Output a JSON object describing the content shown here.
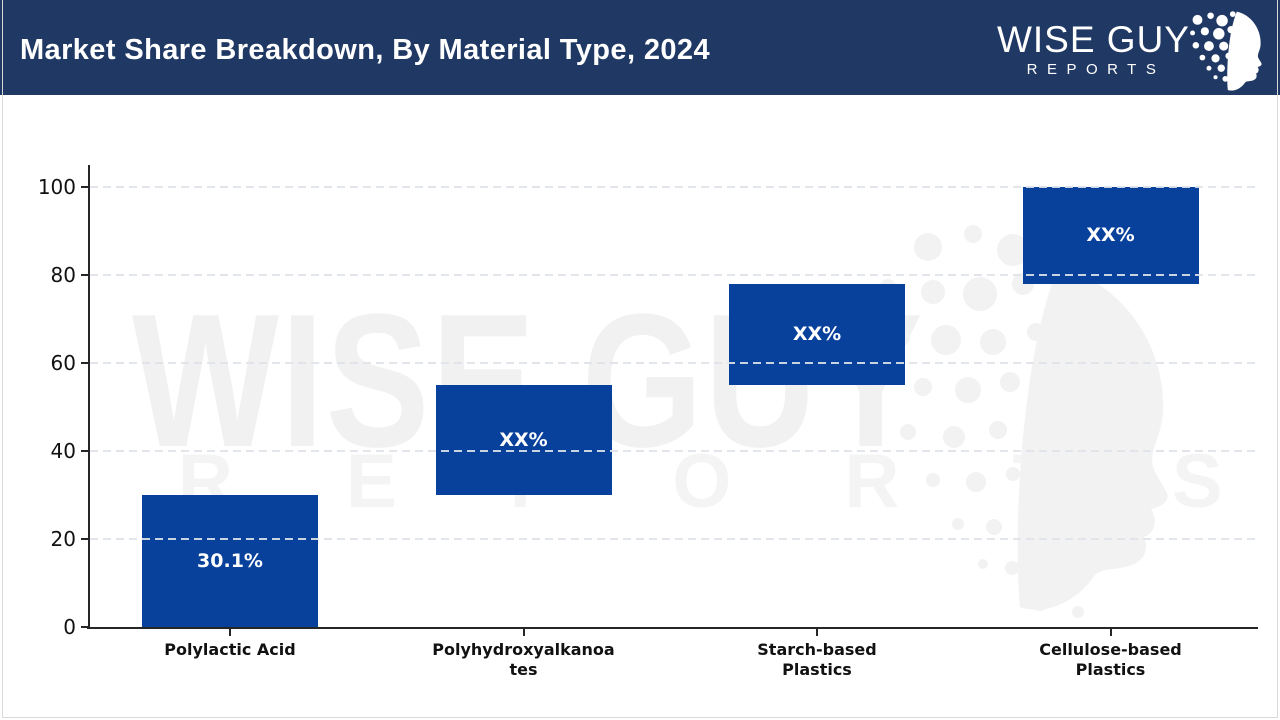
{
  "header": {
    "title": "Market Share Breakdown, By Material Type, 2024",
    "bg_color": "#203864",
    "logo": {
      "line1": "WISE GUY",
      "line2": "REPORTS"
    }
  },
  "watermark": {
    "line1": "WISE GUY",
    "line2": "R E P O R T S"
  },
  "chart_data": {
    "type": "bar",
    "subtype": "floating-waterfall",
    "title": "Market Share Breakdown, By Material Type, 2024",
    "categories": [
      "Polylactic Acid",
      "Polyhydroxyalkanoates",
      "Starch-based Plastics",
      "Cellulose-based Plastics"
    ],
    "bars": [
      {
        "category": "Polylactic Acid",
        "category_lines": [
          "Polylactic Acid"
        ],
        "start": 0,
        "end": 30.1,
        "label": "30.1%"
      },
      {
        "category": "Polyhydroxyalkanoates",
        "category_lines": [
          "Polyhydroxyalkanoa",
          "tes"
        ],
        "start": 30.1,
        "end": 55,
        "label": "XX%"
      },
      {
        "category": "Starch-based Plastics",
        "category_lines": [
          "Starch-based",
          "Plastics"
        ],
        "start": 55,
        "end": 78,
        "label": "XX%"
      },
      {
        "category": "Cellulose-based Plastics",
        "category_lines": [
          "Cellulose-based",
          "Plastics"
        ],
        "start": 78,
        "end": 100,
        "label": "XX%"
      }
    ],
    "yticks": [
      0,
      20,
      40,
      60,
      80,
      100
    ],
    "ylim": [
      0,
      100
    ],
    "xlabel": "",
    "ylabel": "",
    "grid": "horizontal-dashed",
    "legend": "none",
    "bar_color": "#08419c",
    "bar_label_color": "#ffffff"
  }
}
